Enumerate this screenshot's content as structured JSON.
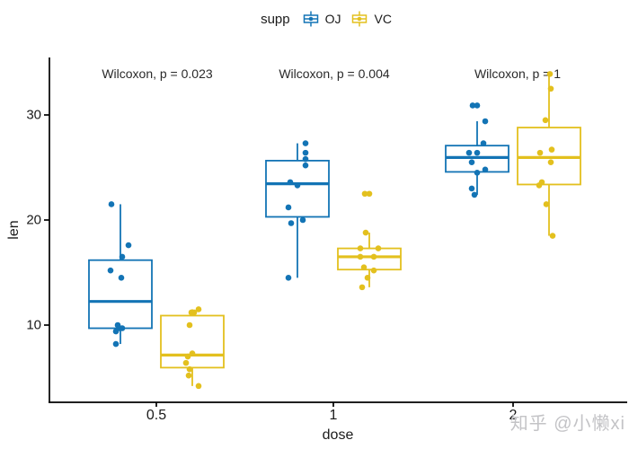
{
  "legend": {
    "title": "supp",
    "items": [
      {
        "label": "OJ",
        "color": "#1374b5"
      },
      {
        "label": "VC",
        "color": "#e3c01e"
      }
    ]
  },
  "axes": {
    "y_label": "len",
    "x_label": "dose",
    "y_ticks": [
      "10",
      "20",
      "30"
    ],
    "x_ticks": [
      "0.5",
      "1",
      "2"
    ]
  },
  "annotations": [
    {
      "text": "Wilcoxon, p = 0.023"
    },
    {
      "text": "Wilcoxon, p = 0.004"
    },
    {
      "text": "Wilcoxon, p = 1"
    }
  ],
  "watermark": "知乎 @小懒xi",
  "colors": {
    "oj": "#1374b5",
    "vc": "#e3c01e",
    "axis": "#000000",
    "text": "#1a1a1a",
    "watermark": "#c3c3c6"
  },
  "chart_data": {
    "type": "box",
    "title": "",
    "xlabel": "dose",
    "ylabel": "len",
    "categories": [
      "0.5",
      "1",
      "2"
    ],
    "ylim": [
      2.6,
      35.3
    ],
    "y_tick_values": [
      10,
      20,
      30
    ],
    "grid": false,
    "legend_position": "top",
    "legend_title": "supp",
    "p_values": [
      0.023,
      0.004,
      1
    ],
    "p_value_labels": [
      "Wilcoxon, p = 0.023",
      "Wilcoxon, p = 0.004",
      "Wilcoxon, p = 1"
    ],
    "series": [
      {
        "name": "OJ",
        "color": "#1374b5",
        "box_stats": [
          {
            "whisker_low": 8.2,
            "q1": 9.7,
            "median": 12.25,
            "q3": 16.18,
            "whisker_high": 21.5,
            "outliers": []
          },
          {
            "whisker_low": 14.5,
            "q1": 20.3,
            "median": 23.45,
            "q3": 25.65,
            "whisker_high": 27.3,
            "outliers": []
          },
          {
            "whisker_low": 22.4,
            "q1": 24.58,
            "median": 25.95,
            "q3": 27.08,
            "whisker_high": 29.4,
            "outliers": [
              30.9
            ]
          }
        ],
        "jitter_points": [
          [
            [
              -10,
              21.5
            ],
            [
              9,
              17.6
            ],
            [
              2,
              16.5
            ],
            [
              -11,
              15.2
            ],
            [
              1,
              14.5
            ],
            [
              -3,
              10.0
            ],
            [
              -1,
              9.7
            ],
            [
              2,
              9.7
            ],
            [
              -5,
              9.4
            ],
            [
              -5,
              8.2
            ]
          ],
          [
            [
              9,
              27.3
            ],
            [
              9,
              26.4
            ],
            [
              9,
              25.8
            ],
            [
              9,
              25.2
            ],
            [
              -8,
              23.6
            ],
            [
              0,
              23.3
            ],
            [
              -10,
              21.2
            ],
            [
              6,
              20.0
            ],
            [
              -7,
              19.7
            ],
            [
              -10,
              14.5
            ]
          ],
          [
            [
              -5,
              30.9
            ],
            [
              9,
              29.4
            ],
            [
              7,
              27.3
            ],
            [
              -9,
              26.4
            ],
            [
              0,
              26.4
            ],
            [
              -6,
              25.5
            ],
            [
              9,
              24.8
            ],
            [
              0,
              24.5
            ],
            [
              -6,
              23.0
            ],
            [
              -3,
              22.4
            ]
          ]
        ]
      },
      {
        "name": "VC",
        "color": "#e3c01e",
        "box_stats": [
          {
            "whisker_low": 4.2,
            "q1": 5.95,
            "median": 7.15,
            "q3": 10.9,
            "whisker_high": 11.5,
            "outliers": []
          },
          {
            "whisker_low": 13.6,
            "q1": 15.28,
            "median": 16.5,
            "q3": 17.3,
            "whisker_high": 18.8,
            "outliers": [
              22.5
            ]
          },
          {
            "whisker_low": 18.5,
            "q1": 23.38,
            "median": 25.95,
            "q3": 28.8,
            "whisker_high": 33.9,
            "outliers": []
          }
        ],
        "jitter_points": [
          [
            [
              7,
              11.5
            ],
            [
              -1,
              11.2
            ],
            [
              2,
              11.2
            ],
            [
              -3,
              10.0
            ],
            [
              0,
              7.3
            ],
            [
              -5,
              7.0
            ],
            [
              -7,
              6.4
            ],
            [
              -3,
              5.8
            ],
            [
              -4,
              5.2
            ],
            [
              7,
              4.2
            ]
          ],
          [
            [
              -5,
              22.5
            ],
            [
              -4,
              18.8
            ],
            [
              -10,
              17.3
            ],
            [
              10,
              17.3
            ],
            [
              -10,
              16.5
            ],
            [
              5,
              16.5
            ],
            [
              -6,
              15.5
            ],
            [
              5,
              15.2
            ],
            [
              -2,
              14.5
            ],
            [
              -8,
              13.6
            ]
          ],
          [
            [
              1,
              33.9
            ],
            [
              2,
              32.5
            ],
            [
              -4,
              29.5
            ],
            [
              3,
              26.7
            ],
            [
              -10,
              26.4
            ],
            [
              2,
              25.5
            ],
            [
              -8,
              23.6
            ],
            [
              -11,
              23.3
            ],
            [
              -3,
              21.5
            ],
            [
              4,
              18.5
            ]
          ]
        ]
      }
    ]
  }
}
